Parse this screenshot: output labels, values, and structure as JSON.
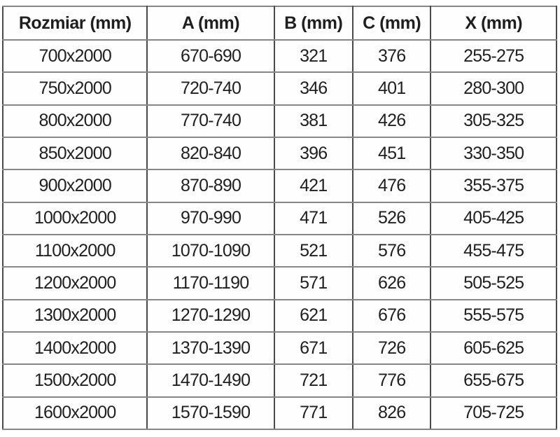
{
  "table": {
    "columns": [
      "Rozmiar (mm)",
      "A (mm)",
      "B (mm)",
      "C (mm)",
      "X (mm)"
    ],
    "rows": [
      [
        "700x2000",
        "670-690",
        "321",
        "376",
        "255-275"
      ],
      [
        "750x2000",
        "720-740",
        "346",
        "401",
        "280-300"
      ],
      [
        "800x2000",
        "770-740",
        "381",
        "426",
        "305-325"
      ],
      [
        "850x2000",
        "820-840",
        "396",
        "451",
        "330-350"
      ],
      [
        "900x2000",
        "870-890",
        "421",
        "476",
        "355-375"
      ],
      [
        "1000x2000",
        "970-990",
        "471",
        "526",
        "405-425"
      ],
      [
        "1100x2000",
        "1070-1090",
        "521",
        "576",
        "455-475"
      ],
      [
        "1200x2000",
        "1170-1190",
        "571",
        "626",
        "505-525"
      ],
      [
        "1300x2000",
        "1270-1290",
        "621",
        "676",
        "555-575"
      ],
      [
        "1400x2000",
        "1370-1390",
        "671",
        "726",
        "605-625"
      ],
      [
        "1500x2000",
        "1470-1490",
        "721",
        "776",
        "655-675"
      ],
      [
        "1600x2000",
        "1570-1590",
        "771",
        "826",
        "705-725"
      ]
    ]
  },
  "colors": {
    "background": "#ffffff",
    "text": "#1f1f1f",
    "border_vertical": "#4a4a4a",
    "border_horizontal": "#868686"
  }
}
